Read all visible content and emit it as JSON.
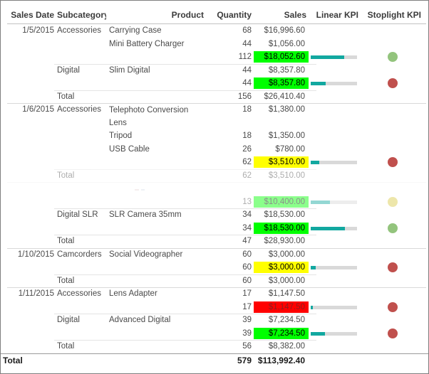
{
  "columns": [
    {
      "id": "date",
      "label": "Sales Date"
    },
    {
      "id": "subcategory",
      "label": "Subcategory"
    },
    {
      "id": "product",
      "label": "Product"
    },
    {
      "id": "quantity",
      "label": "Quantity"
    },
    {
      "id": "sales",
      "label": "Sales"
    },
    {
      "id": "linear",
      "label": "Linear KPI"
    },
    {
      "id": "stoplight",
      "label": "Stoplight KPI"
    }
  ],
  "rows": [
    {
      "type": "detail",
      "date": "1/5/2015",
      "subcategory": "Accessories",
      "product": "Carrying Case",
      "quantity": "68",
      "sales": "$16,996.60",
      "sep": "none"
    },
    {
      "type": "detail",
      "product": "Mini Battery Charger",
      "quantity": "44",
      "sales": "$1,056.00",
      "sep": "none"
    },
    {
      "type": "subtotal",
      "quantity": "112",
      "sales": "$18,052.60",
      "salesBg": "#00ff00",
      "kpi": 72,
      "dot": "#93c47d",
      "sep": "none"
    },
    {
      "type": "detail",
      "subcategory": "Digital",
      "product": "Slim Digital",
      "quantity": "44",
      "sales": "$8,357.80",
      "sep": "group"
    },
    {
      "type": "subtotal",
      "quantity": "44",
      "sales": "$8,357.80",
      "salesBg": "#00ff00",
      "kpi": 33,
      "dot": "#c0504d",
      "sep": "none"
    },
    {
      "type": "total",
      "subcategory": "Total",
      "quantity": "156",
      "sales": "$26,410.40",
      "sep": "group"
    },
    {
      "type": "detail",
      "tall": true,
      "date": "1/6/2015",
      "subcategory": "Accessories",
      "product": "Telephoto Conversion Lens",
      "quantity": "18",
      "sales": "$1,380.00",
      "sep": "date"
    },
    {
      "type": "detail",
      "product": "Tripod",
      "quantity": "18",
      "sales": "$1,350.00",
      "sep": "none"
    },
    {
      "type": "detail",
      "product": "USB Cable",
      "quantity": "26",
      "sales": "$780.00",
      "sep": "none"
    },
    {
      "type": "subtotal",
      "quantity": "62",
      "sales": "$3,510.00",
      "salesBg": "#ffff00",
      "kpi": 18,
      "dot": "#c0504d",
      "sep": "none"
    },
    {
      "type": "total",
      "subcategory": "Total",
      "quantity": "62",
      "sales": "$3,510.00",
      "faded": true,
      "sep": "group"
    },
    {
      "type": "spacer",
      "faded": true,
      "sep": "date"
    },
    {
      "type": "subtotal",
      "quantity": "13",
      "sales": "$10,400.00",
      "salesBg": "#00ff00",
      "kpi": 42,
      "dot": "#d9c944",
      "faded": true,
      "sep": "none"
    },
    {
      "type": "detail",
      "subcategory": "Digital SLR",
      "product": "SLR Camera 35mm",
      "quantity": "34",
      "sales": "$18,530.00",
      "sep": "group"
    },
    {
      "type": "subtotal",
      "quantity": "34",
      "sales": "$18,530.00",
      "salesBg": "#00ff00",
      "kpi": 74,
      "dot": "#93c47d",
      "sep": "none"
    },
    {
      "type": "total",
      "subcategory": "Total",
      "quantity": "47",
      "sales": "$28,930.00",
      "sep": "group"
    },
    {
      "type": "detail",
      "date": "1/10/2015",
      "subcategory": "Camcorders",
      "product": "Social Videographer",
      "quantity": "60",
      "sales": "$3,000.00",
      "sep": "date"
    },
    {
      "type": "subtotal",
      "quantity": "60",
      "sales": "$3,000.00",
      "salesBg": "#ffff00",
      "kpi": 10,
      "dot": "#c0504d",
      "sep": "none"
    },
    {
      "type": "total",
      "subcategory": "Total",
      "quantity": "60",
      "sales": "$3,000.00",
      "sep": "group"
    },
    {
      "type": "detail",
      "date": "1/11/2015",
      "subcategory": "Accessories",
      "product": "Lens Adapter",
      "quantity": "17",
      "sales": "$1,147.50",
      "sep": "date"
    },
    {
      "type": "subtotal",
      "quantity": "17",
      "sales": "$1,147.50",
      "salesBg": "#ff0000",
      "salesColor": "#8b1f1f",
      "kpi": 4,
      "dot": "#c0504d",
      "sep": "none"
    },
    {
      "type": "detail",
      "subcategory": "Digital",
      "product": "Advanced Digital",
      "quantity": "39",
      "sales": "$7,234.50",
      "sep": "group"
    },
    {
      "type": "subtotal",
      "quantity": "39",
      "sales": "$7,234.50",
      "salesBg": "#00ff00",
      "kpi": 30,
      "dot": "#c0504d",
      "sep": "none"
    },
    {
      "type": "total",
      "subcategory": "Total",
      "quantity": "56",
      "sales": "$8,382.00",
      "sep": "group"
    }
  ],
  "grand_total": {
    "label": "Total",
    "quantity": "579",
    "sales": "$113,992.40"
  },
  "colors": {
    "kpi_bar_teal": "#12a8a0",
    "kpi_track_gray": "#d9d9d9",
    "conditional_green": "#00ff00",
    "conditional_yellow": "#ffff00",
    "conditional_red": "#ff0000",
    "stoplight_green": "#93c47d",
    "stoplight_red": "#c0504d",
    "stoplight_yellow": "#d9c944",
    "body_text": "#4a4a4a"
  }
}
